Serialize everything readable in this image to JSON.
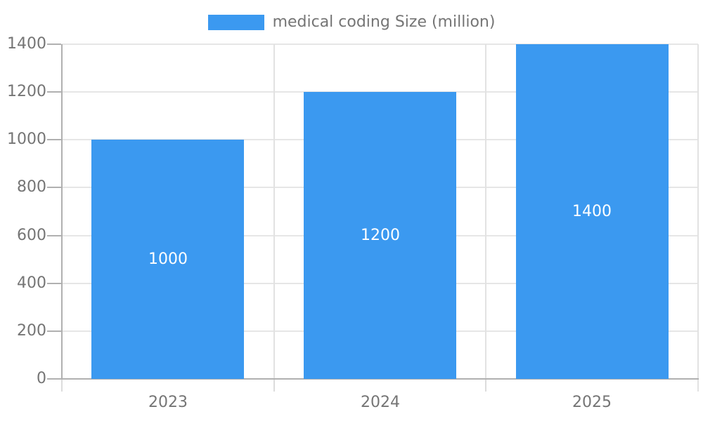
{
  "chart_data": {
    "type": "bar",
    "title": "",
    "legend": "medical coding Size (million)",
    "legend_position": "top-center",
    "categories": [
      "2023",
      "2024",
      "2025"
    ],
    "series": [
      {
        "name": "medical coding Size (million)",
        "values": [
          1000,
          1200,
          1400
        ]
      }
    ],
    "data_labels": [
      "1000",
      "1200",
      "1400"
    ],
    "xlabel": "",
    "ylabel": "",
    "ylim": [
      0,
      1400
    ],
    "yticks": [
      0,
      200,
      400,
      600,
      800,
      1000,
      1200,
      1400
    ],
    "grid": true,
    "colors": {
      "bar": "#3b99f0",
      "axis": "#b0b0b0",
      "gridline": "#e6e6e6",
      "boundary_line": "#e2e2e2",
      "below_axis_tick": "#dcdcdc",
      "axis_label": "#757575",
      "bar_label": "#ffffff",
      "legend_text": "#757575",
      "background": "#ffffff"
    }
  }
}
